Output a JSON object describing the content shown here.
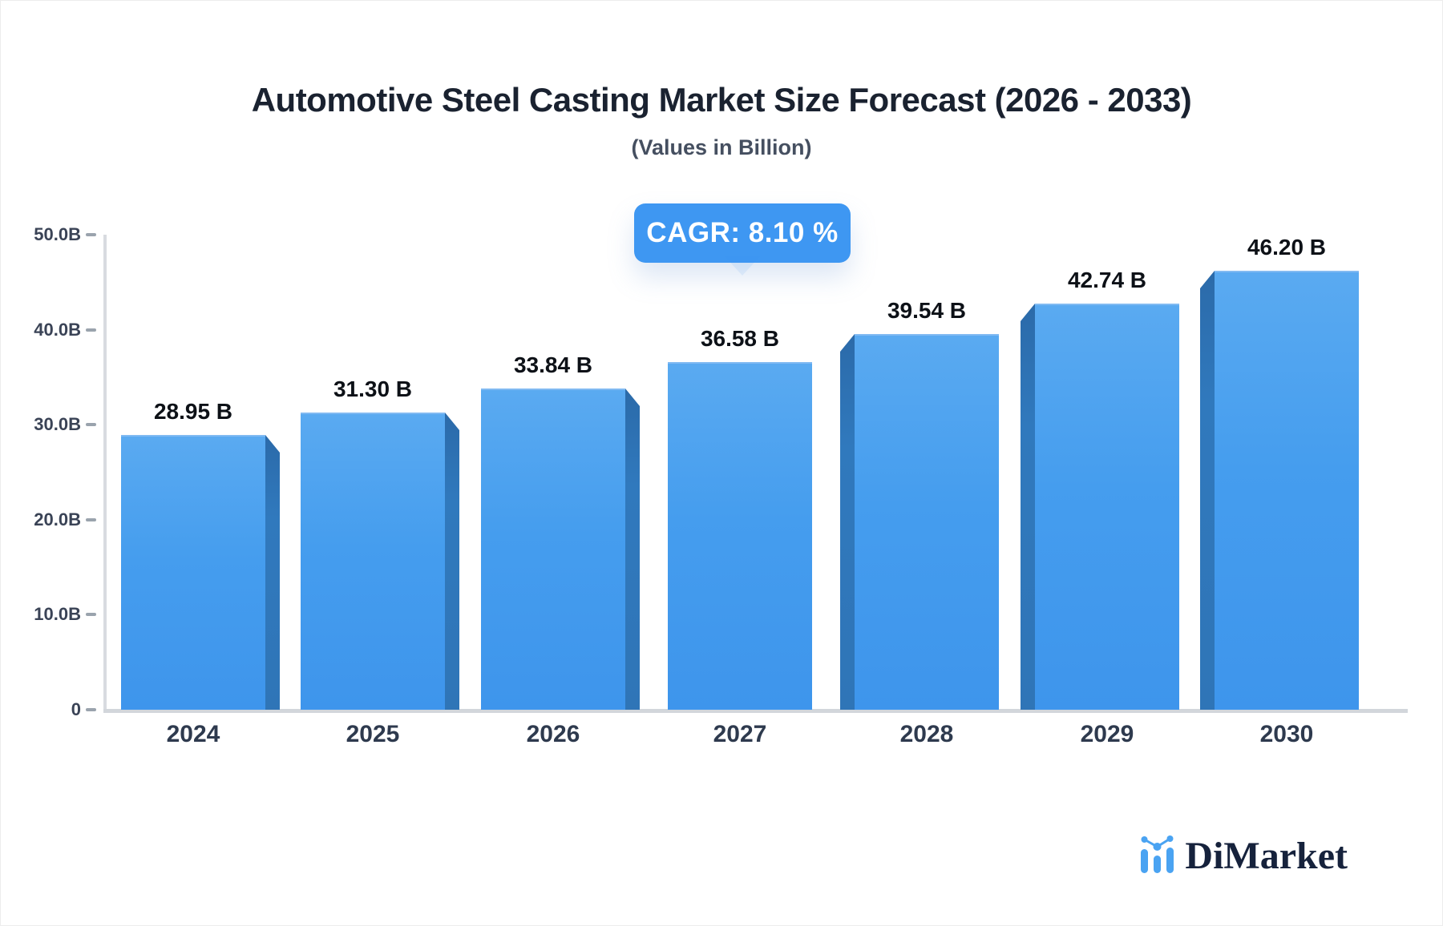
{
  "chart_data": {
    "type": "bar",
    "title": "Automotive Steel Casting Market Size Forecast (2026 - 2033)",
    "subtitle": "(Values in Billion)",
    "annotation": "CAGR: 8.10 %",
    "categories": [
      "2024",
      "2025",
      "2026",
      "2027",
      "2028",
      "2029",
      "2030"
    ],
    "values": [
      28.95,
      31.3,
      33.84,
      36.58,
      39.54,
      42.74,
      46.2
    ],
    "value_labels": [
      "28.95 B",
      "31.30 B",
      "33.84 B",
      "36.58 B",
      "39.54 B",
      "42.74 B",
      "46.20 B"
    ],
    "xlabel": "",
    "ylabel": "",
    "ylim": [
      0,
      50
    ],
    "ytick_values": [
      50,
      40,
      30,
      20,
      10,
      0
    ],
    "ytick_labels": [
      "50.0B",
      "40.0B",
      "30.0B",
      "20.0B",
      "10.0B",
      "0"
    ],
    "grid": "off",
    "legend": "none"
  },
  "footer": {
    "logo_text": "DiMarket"
  },
  "colors": {
    "accent_blue": "#3e97f2",
    "bar_body": "#459dee",
    "bar_side": "#2f75b7",
    "axis_line": "#d5d9de",
    "badge_text": "#ffffff",
    "title_text": "#1a2230",
    "logo_navy": "#16223c",
    "logo_blue": "#4aa3f2"
  }
}
